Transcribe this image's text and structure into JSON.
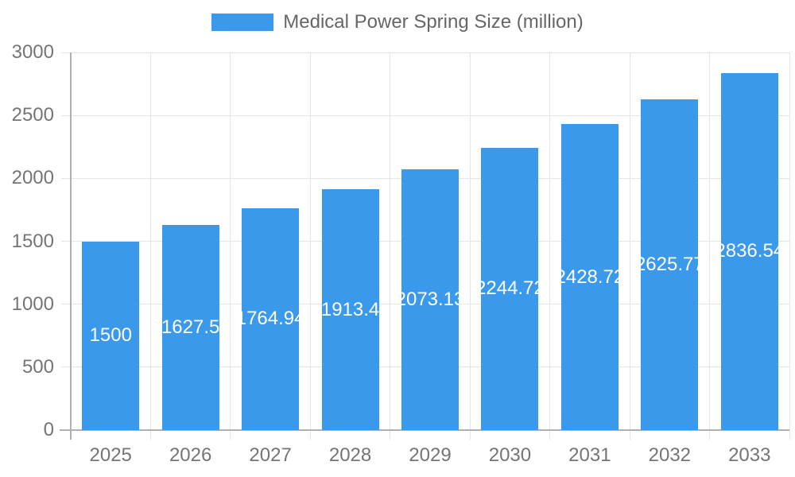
{
  "chart_data": {
    "type": "bar",
    "legend": "Medical Power Spring Size (million)",
    "legend_position": "top",
    "categories": [
      "2025",
      "2026",
      "2027",
      "2028",
      "2029",
      "2030",
      "2031",
      "2032",
      "2033"
    ],
    "values": [
      1500,
      1627.5,
      1764.94,
      1913.4,
      2073.13,
      2244.72,
      2428.72,
      2625.77,
      2836.54
    ],
    "value_labels": [
      "1500",
      "1627.5",
      "1764.94",
      "1913.4",
      "2073.13",
      "2244.72",
      "2428.72",
      "2625.77",
      "2836.54"
    ],
    "xlabel": "",
    "ylabel": "",
    "ylim": [
      0,
      3000
    ],
    "y_ticks": [
      0,
      500,
      1000,
      1500,
      2000,
      2500,
      3000
    ],
    "grid": true,
    "colors": {
      "bar": "#3b99ec",
      "grid": "#e5e5e5",
      "axis": "#b0b0b0",
      "tick_text": "#757575",
      "legend_text": "#666666",
      "value_text": "#ffffff",
      "background": "#ffffff"
    }
  }
}
